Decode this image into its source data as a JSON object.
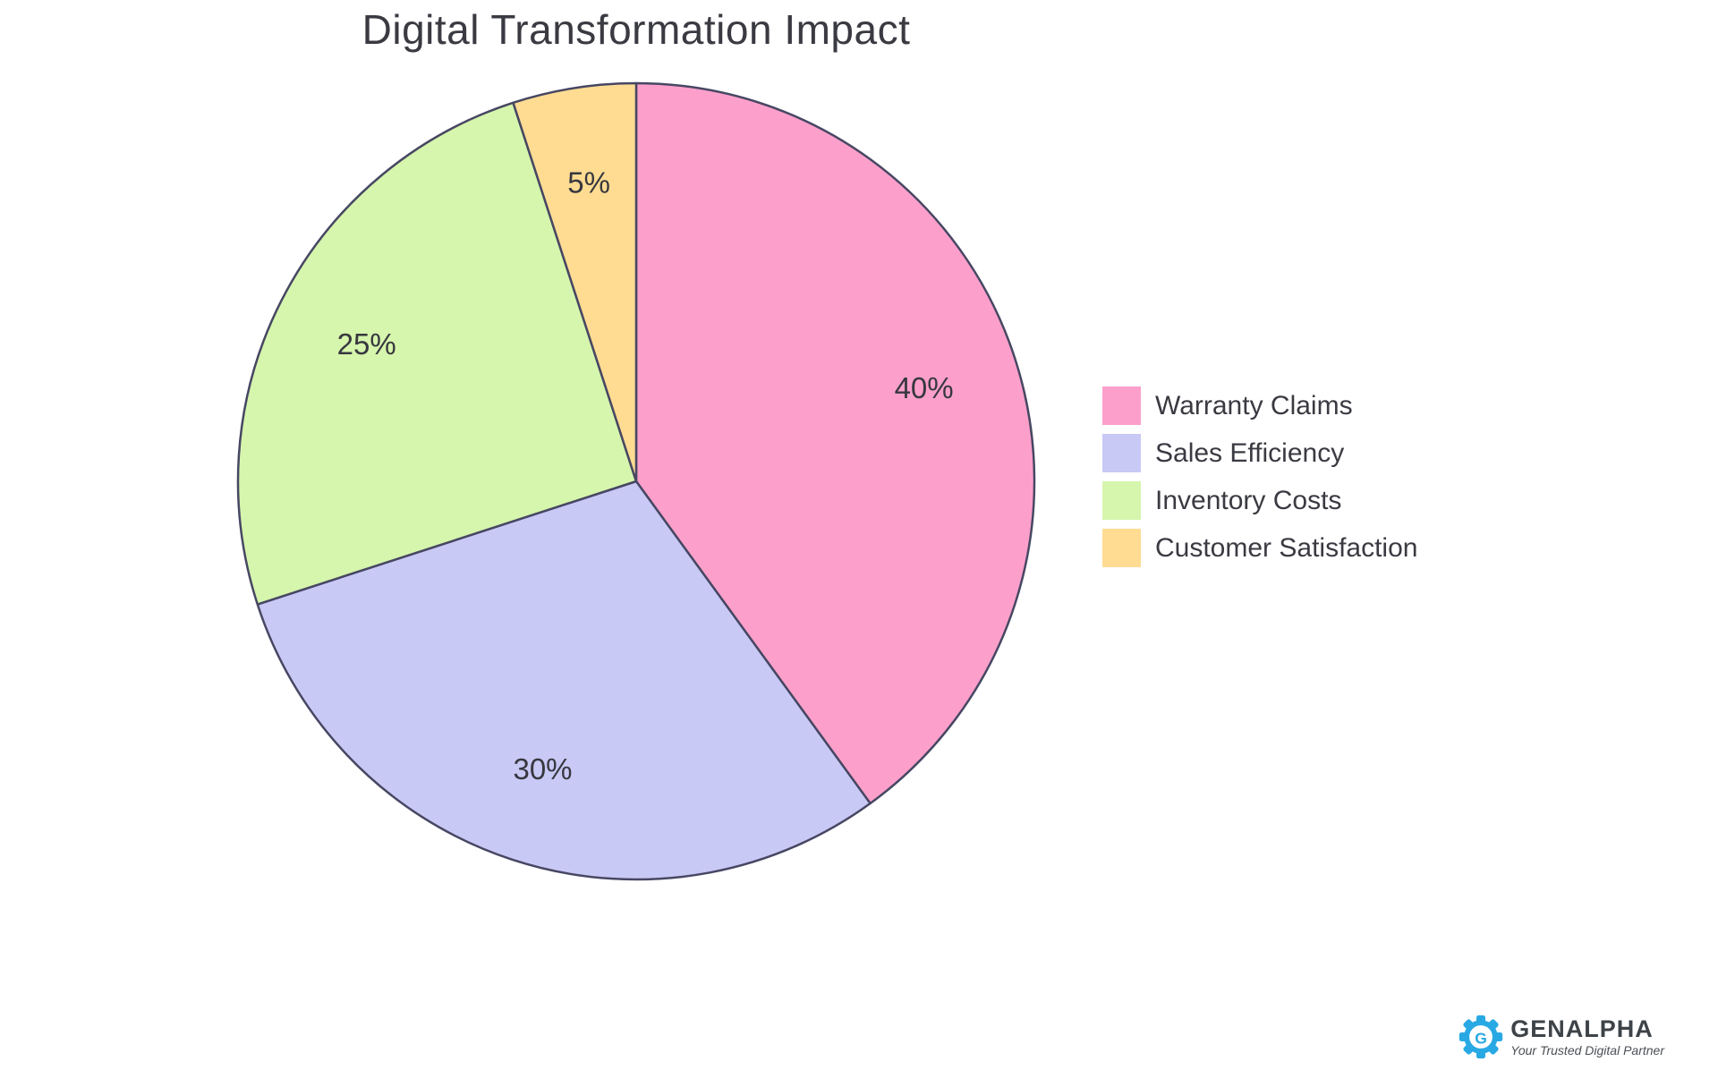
{
  "chart_data": {
    "type": "pie",
    "title": "Digital Transformation Impact",
    "categories": [
      "Warranty Claims",
      "Sales Efficiency",
      "Inventory Costs",
      "Customer Satisfaction"
    ],
    "values": [
      40,
      30,
      25,
      5
    ],
    "slice_labels": [
      "40%",
      "30%",
      "25%",
      "5%"
    ],
    "colors": [
      "#FCA0CB",
      "#C9C9F6",
      "#D6F5AD",
      "#FFDC92"
    ],
    "stroke_color": "#474763",
    "start_angle": "12 o'clock",
    "direction": "clockwise",
    "legend_position": "right",
    "background": "#FFFFFF"
  },
  "logo": {
    "name": "GENALPHA",
    "tagline": "Your Trusted Digital Partner",
    "gear_color": "#29A9E4",
    "gear_letter": "G"
  }
}
